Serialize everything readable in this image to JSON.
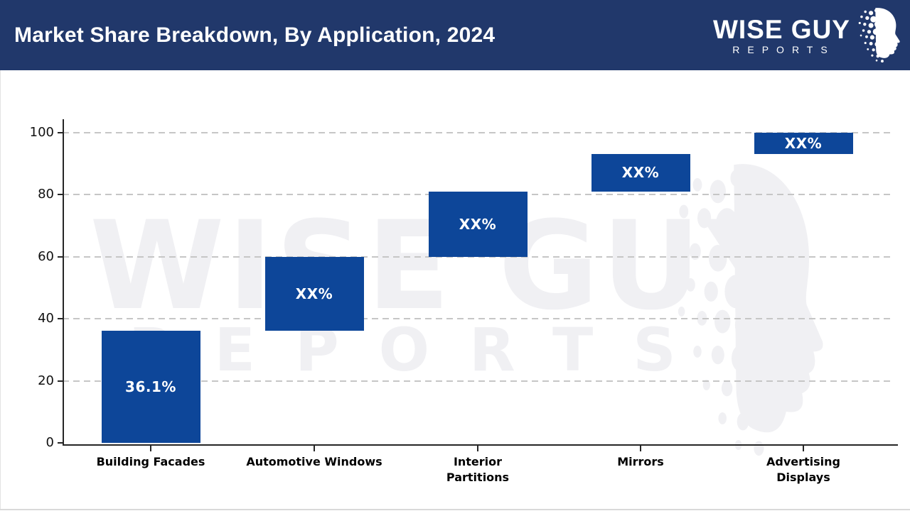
{
  "header": {
    "title": "Market Share Breakdown, By Application, 2024",
    "bg_color": "#21386b",
    "logo": {
      "line1": "WISE GUY",
      "line2": "REPORTS"
    }
  },
  "watermark": {
    "line1": "WISE GUY",
    "line2": "REPORTS"
  },
  "chart_data": {
    "type": "bar",
    "subtype": "waterfall",
    "title": "Market Share Breakdown, By Application, 2024",
    "categories": [
      "Building Facades",
      "Automotive Windows",
      "Interior Partitions",
      "Mirrors",
      "Advertising Displays"
    ],
    "category_label_lines": [
      [
        "Building Facades"
      ],
      [
        "Automotive Windows"
      ],
      [
        "Interior",
        "Partitions"
      ],
      [
        "Mirrors"
      ],
      [
        "Advertising",
        "Displays"
      ]
    ],
    "segments": [
      {
        "category": "Building Facades",
        "start": 0,
        "end": 36.1,
        "label": "36.1%"
      },
      {
        "category": "Automotive Windows",
        "start": 36.1,
        "end": 60,
        "label": "XX%"
      },
      {
        "category": "Interior Partitions",
        "start": 60,
        "end": 81,
        "label": "XX%"
      },
      {
        "category": "Mirrors",
        "start": 81,
        "end": 93,
        "label": "XX%"
      },
      {
        "category": "Advertising Displays",
        "start": 93,
        "end": 100,
        "label": "XX%"
      }
    ],
    "yticks": [
      0,
      20,
      40,
      60,
      80,
      100
    ],
    "ylim": [
      0,
      105
    ],
    "xlabel": "",
    "ylabel": "",
    "grid": true,
    "grid_style": "dashed",
    "legend": false,
    "bar_color": "#0d4699",
    "bar_label_color": "#ffffff",
    "axis_color": "#262626"
  }
}
